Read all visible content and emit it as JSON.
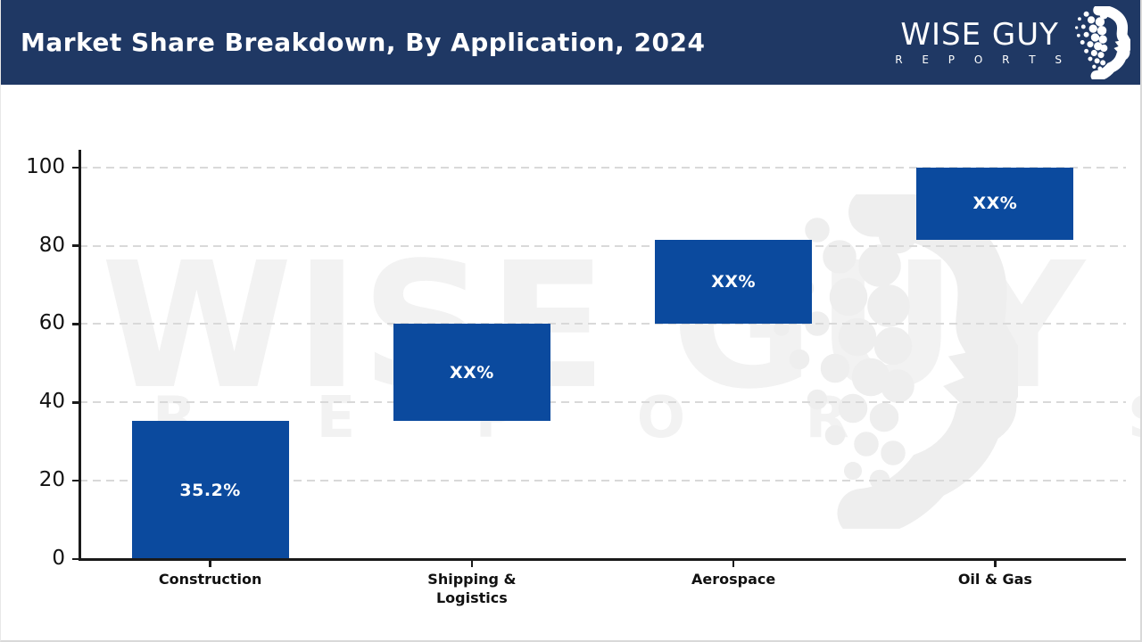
{
  "header": {
    "title": "Market Share Breakdown, By Application, 2024",
    "logo": {
      "name": "WISE GUY",
      "tagline": "R E P O R T S"
    }
  },
  "watermark": {
    "name": "WISE GUY",
    "tagline": "R E P O R T S"
  },
  "colors": {
    "header_bg": "#1f3864",
    "bar": "#0b4a9e",
    "bar_label": "#ffffff",
    "axis": "#1a1a1a",
    "grid": "#d9d9d9",
    "tick_text": "#111111",
    "watermark": "#f2f2f2",
    "watermark_head": "#eeeeee",
    "page_border": "#d9d9d9"
  },
  "chart_data": {
    "type": "bar",
    "subtype": "floating_segment_waterfall",
    "title": "Market Share Breakdown, By Application, 2024",
    "categories": [
      "Construction",
      "Shipping &\nLogistics",
      "Aerospace",
      "Oil & Gas"
    ],
    "segments": [
      {
        "category": "Construction",
        "start": 0,
        "end": 35.2,
        "label": "35.2%"
      },
      {
        "category": "Shipping & Logistics",
        "start": 35.2,
        "end": 60,
        "label": "XX%"
      },
      {
        "category": "Aerospace",
        "start": 60,
        "end": 81.5,
        "label": "XX%"
      },
      {
        "category": "Oil & Gas",
        "start": 81.5,
        "end": 100,
        "label": "XX%"
      }
    ],
    "yticks": [
      0,
      20,
      40,
      60,
      80,
      100
    ],
    "ylim": [
      0,
      104.5
    ],
    "xlabel": "",
    "ylabel": "",
    "grid": "horizontal-dashed",
    "legend": "none",
    "bar_color": "#0b4a9e",
    "bar_label_color": "#ffffff"
  }
}
